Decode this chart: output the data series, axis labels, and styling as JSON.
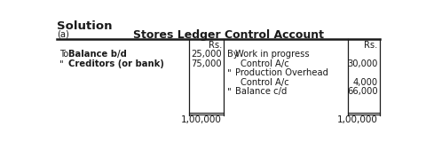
{
  "title_bold": "Solution",
  "subtitle_label": "(a)",
  "subtitle_title": "Stores Ledger Control Account",
  "header_rs": "Rs.",
  "left_entries": [
    {
      "prefix": "To",
      "label": "Balance b/d",
      "value": "25,000"
    },
    {
      "prefix": "\"",
      "label": "Creditors (or bank)",
      "value": "75,000"
    }
  ],
  "left_total": "1,00,000",
  "right_entries": [
    {
      "prefix": "By",
      "label": "Work in progress",
      "value": ""
    },
    {
      "prefix": "",
      "label": "Control A/c",
      "value": "30,000"
    },
    {
      "prefix": "\"",
      "label": "Production Overhead",
      "value": ""
    },
    {
      "prefix": "",
      "label": "Control A/c",
      "value": "4,000"
    },
    {
      "prefix": "\"",
      "label": "Balance c/d",
      "value": "66,000"
    }
  ],
  "right_total": "1,00,000",
  "bg_color": "#ffffff",
  "text_color": "#1a1a1a",
  "font_size": 7.2,
  "bold_font_size": 8.5
}
